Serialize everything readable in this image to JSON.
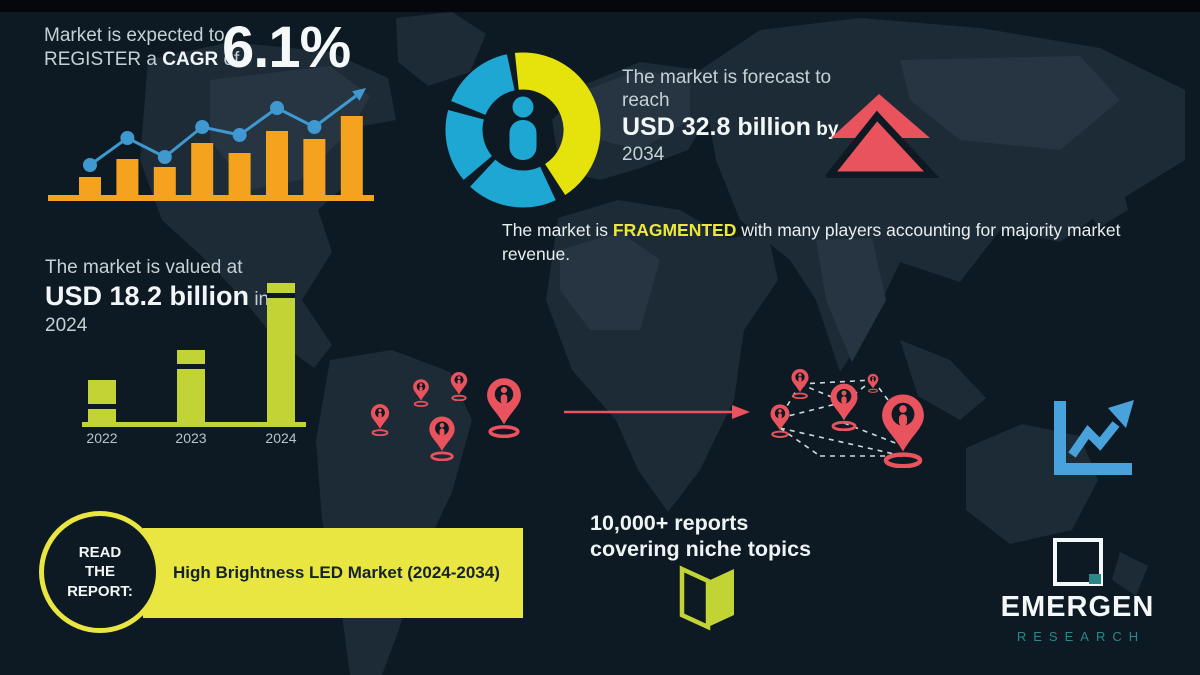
{
  "colors": {
    "background": "#0d1a24",
    "map": "#1d2b36",
    "map_light": "#263541",
    "orange": "#f5a31f",
    "line_blue": "#3f98d0",
    "donut_cyan": "#1ea7d3",
    "donut_yellow": "#e5e30b",
    "red": "#e9535e",
    "green": "#c2d435",
    "banner_yellow": "#e9e642",
    "teal": "#2b8789",
    "white_text": "#f2f6f6",
    "muted_text": "#c6d0d4",
    "dark_text": "#15222b",
    "icon_blue": "#49a2dc"
  },
  "cagr": {
    "line1": "Market is expected to",
    "line2_pre": "REGISTER a ",
    "line2_bold": "CAGR",
    "line2_post": " of",
    "value": "6.1%"
  },
  "forecast": {
    "line1": "The market is forecast to",
    "line2": "reach",
    "value": "USD 32.8 billion",
    "by": "by",
    "year": "2034"
  },
  "fragmented": {
    "pre": "The market is ",
    "highlight": "FRAGMENTED",
    "post": " with many players accounting for majority market revenue."
  },
  "valued": {
    "line1": "The market is valued at",
    "value": "USD 18.2 billion",
    "in_word": " in",
    "year": "2024"
  },
  "reports": {
    "line1": "10,000+ reports",
    "line2": "covering niche topics"
  },
  "read_report": {
    "lines": [
      "READ",
      "THE",
      "REPORT:"
    ],
    "banner": "High Brightness LED Market (2024-2034)"
  },
  "logo": {
    "name": "EMERGEN",
    "sub": "RESEARCH"
  },
  "chart_data": [
    {
      "id": "cagr-trend",
      "type": "bar",
      "title": "Market growth trend with 6.1% CAGR (unlabeled axes, relative units)",
      "values": [
        18,
        36,
        28,
        52,
        42,
        64,
        56,
        79
      ],
      "line_values": [
        30,
        57,
        38,
        68,
        60,
        87,
        68
      ],
      "arrow_value": 99,
      "bar_color": "#f5a31f",
      "line_color": "#3f98d0",
      "dot_color": "#3f98d0"
    },
    {
      "id": "market-share-donut",
      "type": "pie",
      "title": "Fragmented market share donut (decorative, angles in degrees from top)",
      "segments": [
        {
          "color": "#e5e30b",
          "start": -6,
          "end": 147
        },
        {
          "color": "#1ea7d3",
          "start": 155,
          "end": 223
        },
        {
          "color": "#1ea7d3",
          "start": 230,
          "end": 285
        },
        {
          "color": "#1ea7d3",
          "start": 292,
          "end": 348
        }
      ],
      "center_icon": "person"
    },
    {
      "id": "valuation-bars",
      "type": "bar",
      "title": "Market valuation growth; USD 18.2 billion in 2024 (relative heights)",
      "categories": [
        "2022",
        "2023",
        "2024"
      ],
      "values": [
        42,
        72,
        139
      ],
      "stripe_offsets": [
        24,
        14,
        10
      ],
      "bar_color": "#c2d435",
      "label_color": "#b9c3c8"
    }
  ]
}
